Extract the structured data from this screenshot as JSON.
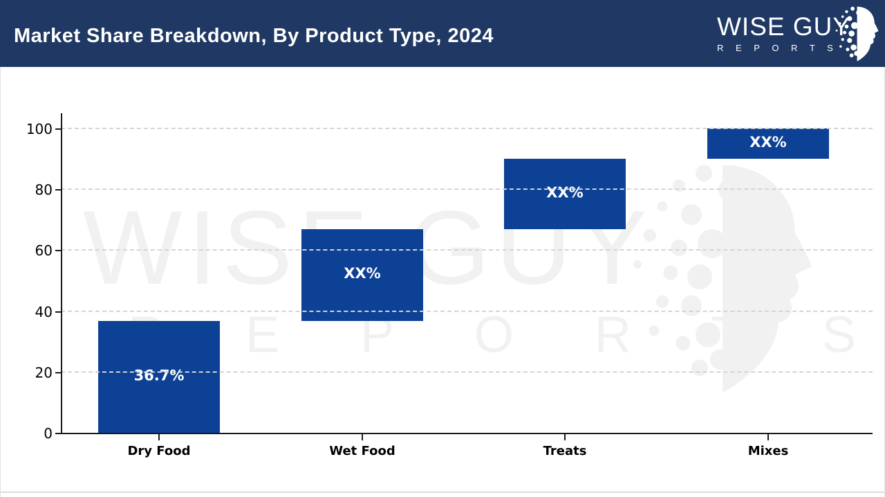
{
  "header": {
    "title": "Market Share Breakdown, By Product Type, 2024",
    "logo": {
      "line1": "WISE GUY",
      "line2": "R E P O R T S"
    }
  },
  "watermark": {
    "line1": "WISE GUY",
    "line2": "R E P O R T S"
  },
  "chart_data": {
    "type": "bar",
    "subtype": "waterfall",
    "title": "Market Share Breakdown, By Product Type, 2024",
    "categories": [
      "Dry Food",
      "Wet Food",
      "Treats",
      "Mixes"
    ],
    "segments": [
      {
        "label": "Dry Food",
        "start": 0,
        "end": 36.7,
        "bar_label": "36.7%"
      },
      {
        "label": "Wet Food",
        "start": 36.7,
        "end": 67,
        "bar_label": "XX%"
      },
      {
        "label": "Treats",
        "start": 67,
        "end": 90,
        "bar_label": "XX%"
      },
      {
        "label": "Mixes",
        "start": 90,
        "end": 100,
        "bar_label": "XX%"
      }
    ],
    "y_ticks": [
      0,
      20,
      40,
      60,
      80,
      100
    ],
    "ylim": [
      0,
      105
    ],
    "xlabel": "",
    "ylabel": "",
    "grid": "horizontal-dashed",
    "legend": "none",
    "bar_color": "#0c4195",
    "bar_label_color": "#ffffff",
    "header_color": "#1f3864"
  }
}
